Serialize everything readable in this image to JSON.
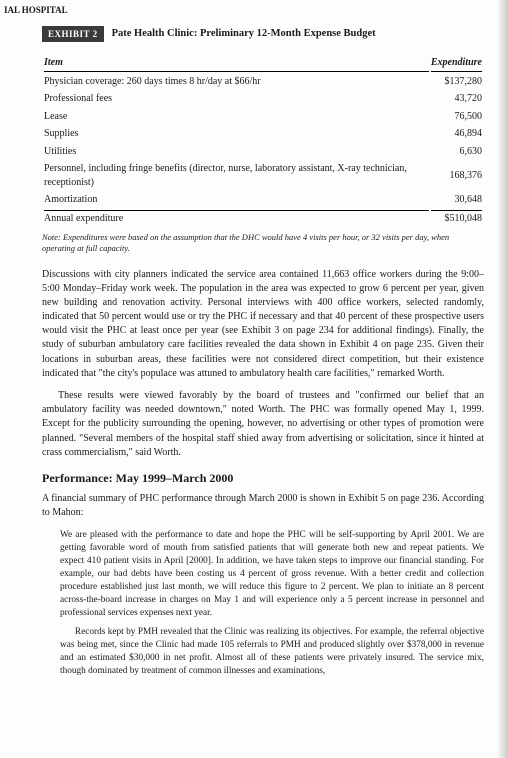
{
  "header_top": "IAL HOSPITAL",
  "exhibit": {
    "badge": "EXHIBIT 2",
    "title": "Pate Health Clinic: Preliminary 12-Month Expense Budget"
  },
  "table": {
    "col_item": "Item",
    "col_exp": "Expenditure",
    "rows": [
      {
        "label": "Physician coverage: 260 days times 8 hr/day at $66/hr",
        "value": "$137,280"
      },
      {
        "label": "Professional fees",
        "value": "43,720"
      },
      {
        "label": "Lease",
        "value": "76,500"
      },
      {
        "label": "Supplies",
        "value": "46,894"
      },
      {
        "label": "Utilities",
        "value": "6,630"
      },
      {
        "label": "Personnel, including fringe benefits (director, nurse, laboratory assistant, X-ray technician, receptionist)",
        "value": "168,376"
      },
      {
        "label": "Amortization",
        "value": "30,648"
      }
    ],
    "total": {
      "label": "Annual expenditure",
      "value": "$510,048"
    },
    "note": "Note: Expenditures were based on the assumption that the DHC would have 4 visits per hour, or 32 visits per day, when operating at full capacity."
  },
  "para1": "Discussions with city planners indicated the service area contained 11,663 office workers during the 9:00–5:00 Monday–Friday work week. The population in the area was expected to grow 6 percent per year, given new building and renovation activity. Personal interviews with 400 office workers, selected randomly, indicated that 50 percent would use or try the PHC if necessary and that 40 percent of these prospective users would visit the PHC at least once per year (see Exhibit 3 on page 234 for additional findings). Finally, the study of suburban ambulatory care facilities revealed the data shown in Exhibit 4 on page 235. Given their locations in suburban areas, these facilities were not considered direct competition, but their existence indicated that \"the city's populace was attuned to ambulatory health care facilities,\" remarked Worth.",
  "para2": "These results were viewed favorably by the board of trustees and \"confirmed our belief that an ambulatory facility was needed downtown,\" noted Worth. The PHC was formally opened May 1, 1999. Except for the publicity surrounding the opening, however, no advertising or other types of promotion were planned. \"Several members of the hospital staff shied away from advertising or solicitation, since it hinted at crass commercialism,\" said Worth.",
  "section_heading": "Performance: May 1999–March 2000",
  "para3": "A financial summary of PHC performance through March 2000 is shown in Exhibit 5 on page 236. According to Mahon:",
  "quote1": "We are pleased with the performance to date and hope the PHC will be self-supporting by April 2001. We are getting favorable word of mouth from satisfied patients that will generate both new and repeat patients. We expect 410 patient visits in April [2000]. In addition, we have taken steps to improve our financial standing. For example, our bad debts have been costing us 4 percent of gross revenue. With a better credit and collection procedure established just last month, we will reduce this figure to 2 percent. We plan to initiate an 8 percent across-the-board increase in charges on May 1 and will experience only a 5 percent increase in personnel and professional services expenses next year.",
  "quote2": "Records kept by PMH revealed that the Clinic was realizing its objectives. For example, the referral objective was being met, since the Clinic had made 105 referrals to PMH and produced slightly over $378,000 in revenue and an estimated $30,000 in net profit. Almost all of these patients were privately insured. The service mix, though dominated by treatment of common illnesses and examinations,"
}
